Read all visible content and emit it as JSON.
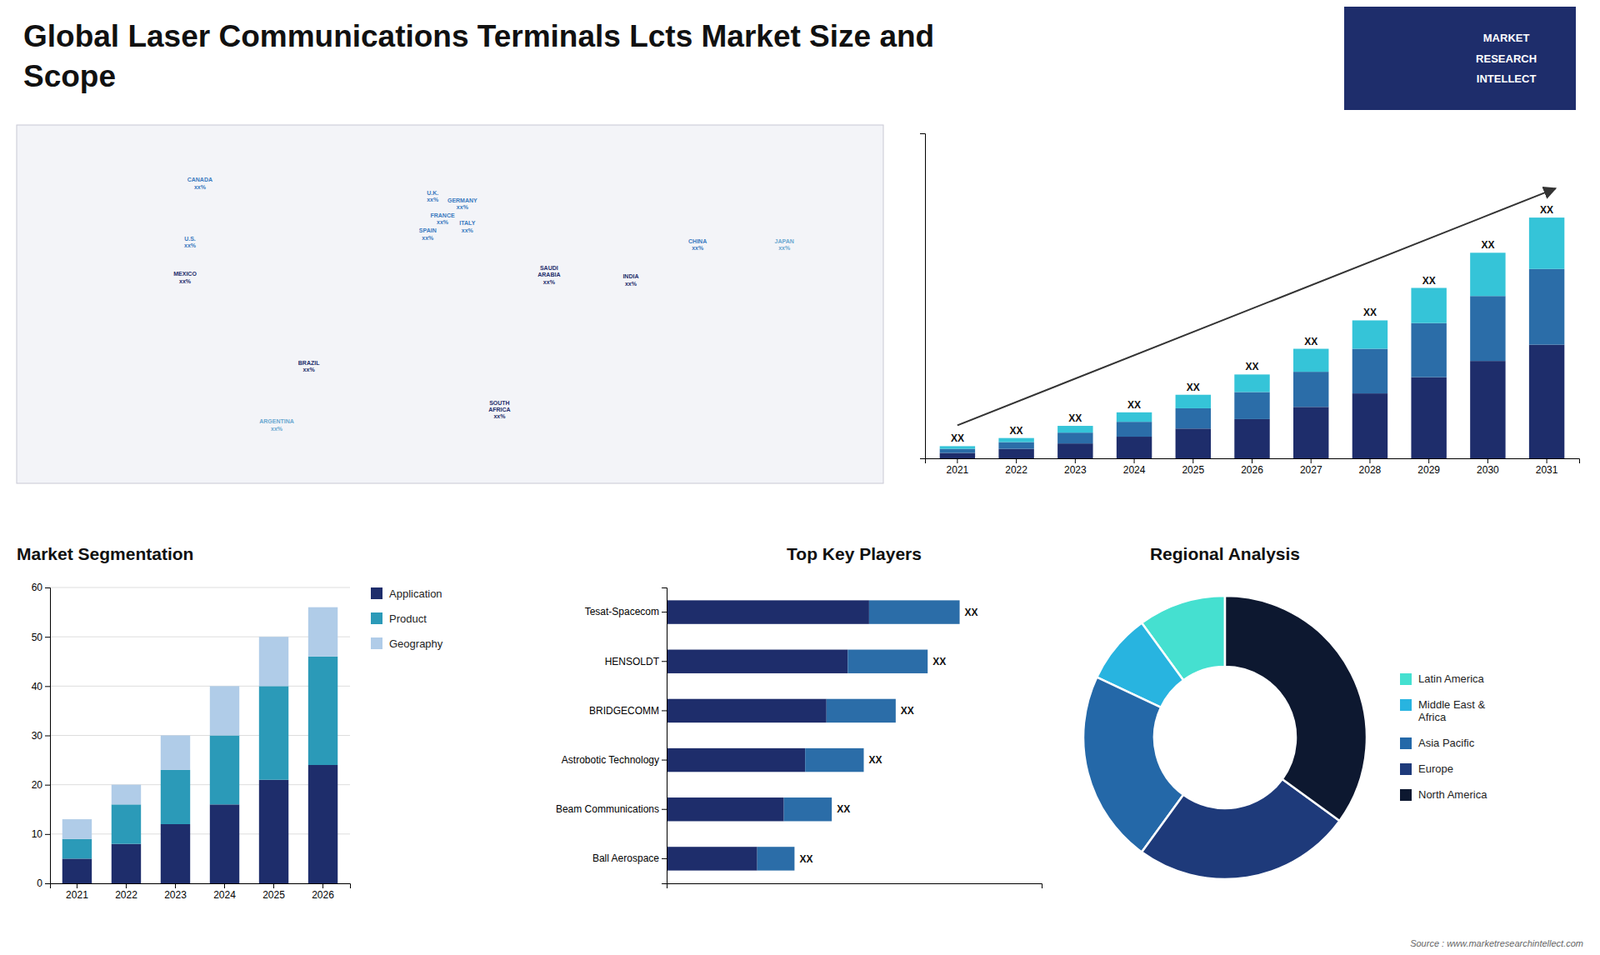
{
  "chart_data": [
    {
      "type": "map",
      "title": "Global Laser Communications Terminals Lcts Market Size and\nScope",
      "xlim": [
        -170,
        180
      ],
      "ylim": [
        -58,
        83
      ],
      "tick_labels": false,
      "annotations": [
        {
          "text": "U.S.\nxx%",
          "x": -100,
          "y": 37,
          "color": "#3a7abf"
        },
        {
          "text": "CANADA\nxx%",
          "x": -96,
          "y": 60,
          "color": "#3a7abf"
        },
        {
          "text": "MEXICO\nxx%",
          "x": -102,
          "y": 23,
          "color": "#1e2d6b"
        },
        {
          "text": "BRAZIL\nxx%",
          "x": -52,
          "y": -12,
          "color": "#1e2d6b"
        },
        {
          "text": "ARGENTINA\nxx%",
          "x": -65,
          "y": -35,
          "color": "#6aa8d0"
        },
        {
          "text": "U.K.\nxx%",
          "x": -2,
          "y": 55,
          "color": "#3a7abf"
        },
        {
          "text": "FRANCE\nxx%",
          "x": 2,
          "y": 46,
          "color": "#3a7abf"
        },
        {
          "text": "SPAIN\nxx%",
          "x": -4,
          "y": 40,
          "color": "#3a7abf"
        },
        {
          "text": "GERMANY\nxx%",
          "x": 10,
          "y": 52,
          "color": "#3a7abf"
        },
        {
          "text": "ITALY\nxx%",
          "x": 12,
          "y": 43,
          "color": "#3a7abf"
        },
        {
          "text": "SAUDI\nARABIA\nxx%",
          "x": 45,
          "y": 24,
          "color": "#1e2d6b"
        },
        {
          "text": "SOUTH\nAFRICA\nxx%",
          "x": 25,
          "y": -29,
          "color": "#1e2d6b"
        },
        {
          "text": "CHINA\nxx%",
          "x": 105,
          "y": 36,
          "color": "#3a7abf"
        },
        {
          "text": "JAPAN\nxx%",
          "x": 140,
          "y": 36,
          "color": "#6aa8d0"
        },
        {
          "text": "INDIA\nxx%",
          "x": 78,
          "y": 22,
          "color": "#1e2d6b"
        }
      ]
    },
    {
      "type": "logo",
      "color": "#1e2d6b",
      "annotations": [
        "MARKET",
        "RESEARCH",
        "INTELLECT"
      ]
    },
    {
      "type": "bar",
      "stacked": true,
      "categories": [
        "2021",
        "2022",
        "2023",
        "2024",
        "2025",
        "2026",
        "2027",
        "2028",
        "2029",
        "2030",
        "2031"
      ],
      "series": [
        {
          "color": "#1e2d6b",
          "values": [
            2.0,
            3.5,
            5.5,
            8.0,
            11.0,
            14.5,
            19.0,
            24.0,
            30.0,
            36.0,
            42.0
          ]
        },
        {
          "color": "#2b6da8",
          "values": [
            1.5,
            2.5,
            4.0,
            5.5,
            7.5,
            10.0,
            13.0,
            16.5,
            20.0,
            24.0,
            28.0
          ]
        },
        {
          "color": "#35c4d8",
          "values": [
            1.0,
            1.5,
            2.5,
            3.5,
            5.0,
            6.5,
            8.5,
            10.5,
            13.0,
            16.0,
            19.0
          ]
        }
      ],
      "ylim": [
        0,
        120.15
      ],
      "yticks": [],
      "tick_labels": "x",
      "annotations": [
        "XX",
        "XX",
        "XX",
        "XX",
        "XX",
        "XX",
        "XX",
        "XX",
        "XX",
        "XX",
        "XX"
      ]
    },
    {
      "type": "bar",
      "stacked": true,
      "title": "Market Segmentation",
      "categories": [
        "2021",
        "2022",
        "2023",
        "2024",
        "2025",
        "2026"
      ],
      "series": [
        {
          "name": "Application",
          "color": "#1e2d6b",
          "values": [
            5,
            8,
            12,
            16,
            21,
            24
          ]
        },
        {
          "name": "Product",
          "color": "#2b9ab8",
          "values": [
            4,
            8,
            11,
            14,
            19,
            22
          ]
        },
        {
          "name": "Geography",
          "color": "#b0cce8",
          "values": [
            4,
            4,
            7,
            10,
            10,
            10
          ]
        }
      ],
      "ylim": [
        0,
        60
      ],
      "yticks": [
        0,
        10,
        20,
        30,
        40,
        50,
        60
      ],
      "grid": true,
      "legend": "right"
    },
    {
      "type": "bar",
      "stacked": true,
      "orientation": "horizontal",
      "title": "Top Key Players",
      "categories": [
        "Tesat-Spacecom",
        "HENSOLDT",
        "BRIDGECOMM",
        "Astrobotic Technology",
        "Beam Communications",
        "Ball Aerospace"
      ],
      "series": [
        {
          "color": "#1e2d6b",
          "values": [
            38,
            34,
            30,
            26,
            22,
            17
          ]
        },
        {
          "color": "#2b6da8",
          "values": [
            17,
            15,
            13,
            11,
            9,
            7
          ]
        }
      ],
      "xlim": [
        0,
        70.4
      ],
      "xticks": [],
      "tick_labels": "y",
      "annotations": [
        "XX",
        "XX",
        "XX",
        "XX",
        "XX",
        "XX"
      ]
    },
    {
      "type": "donut",
      "title": "Regional Analysis",
      "categories": [
        "Latin America",
        "Middle East &\nAfrica",
        "Asia Pacific",
        "Europe",
        "North America"
      ],
      "values": [
        10,
        8,
        22,
        25,
        35
      ],
      "colors": [
        "#45e0d0",
        "#28b4e0",
        "#2468a8",
        "#1e3a7a",
        "#0d1830"
      ],
      "legend": "right",
      "annotations": [
        "Source : www.marketresearchintellect.com"
      ]
    }
  ]
}
